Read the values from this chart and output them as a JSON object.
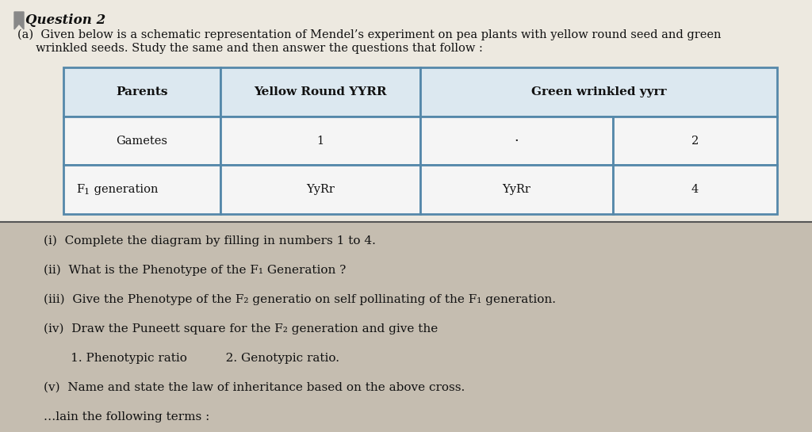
{
  "bg_top": "#e8e4dc",
  "bg_bottom": "#c8c0b0",
  "title": "Question 2",
  "question_a_line1": "(a)  Given below is a schematic representation of Mendel’s experiment on pea plants with yellow round seed and green",
  "question_a_line2": "     wrinkled seeds. Study the same and then answer the questions that follow :",
  "table": {
    "header": [
      "Parents",
      "Yellow Round YYRR",
      "Green wrinkled yyrr"
    ],
    "row1": [
      "Gametes",
      "1",
      "2"
    ],
    "row2_col0": "F₁ generation",
    "row2_col1": "YyRr",
    "row2_col2": "YyRr",
    "row2_col3": "4",
    "border_color": "#5588aa",
    "header_bg": "#dce8f0",
    "cell_bg": "#f5f5f5"
  },
  "questions": [
    "(i)  Complete the diagram by filling in numbers 1 to 4.",
    "(ii)  What is the Phenotype of the F₁ Generation ?",
    "(iii)  Give the Phenotype of the F₂ generatio on self pollinating of the F₁ generation.",
    "(iv)  Draw the Puneett square for the F₂ generation and give the",
    "       1. Phenotypic ratio          2. Genotypic ratio.",
    "(v)  Name and state the law of inheritance based on the above cross.",
    "…lain the following terms :"
  ],
  "text_color": "#111111",
  "table_text_color": "#111111",
  "title_fontsize": 12,
  "body_fontsize": 10.5,
  "table_header_fontsize": 11,
  "table_cell_fontsize": 10.5,
  "question_fontsize": 11
}
